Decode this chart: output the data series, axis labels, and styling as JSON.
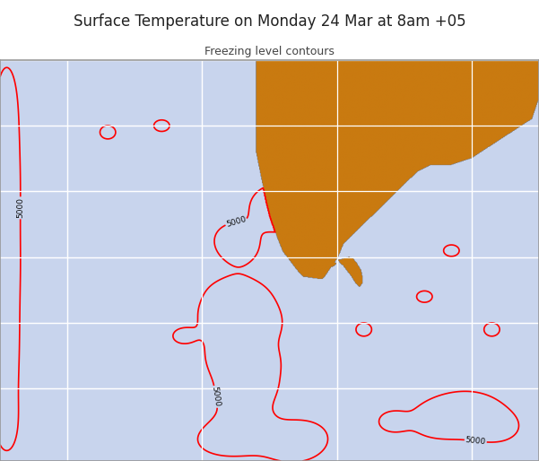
{
  "title": "Surface Temperature on Monday 24 Mar at 8am +05",
  "subtitle": "Freezing level contours",
  "title_fontsize": 12,
  "subtitle_fontsize": 9,
  "background_color": "#ffffff",
  "ocean_color": "#c8d4ed",
  "land_color": "#c97a10",
  "contour_color": "#ff0000",
  "grid_color": "#ffffff",
  "figsize": [
    6.01,
    5.14
  ],
  "dpi": 100,
  "xlim": [
    55.0,
    95.0
  ],
  "ylim": [
    -5.5,
    25.0
  ],
  "xticks": [
    60,
    70,
    80,
    90
  ],
  "yticks": [
    0,
    5,
    10,
    15,
    20,
    25
  ]
}
